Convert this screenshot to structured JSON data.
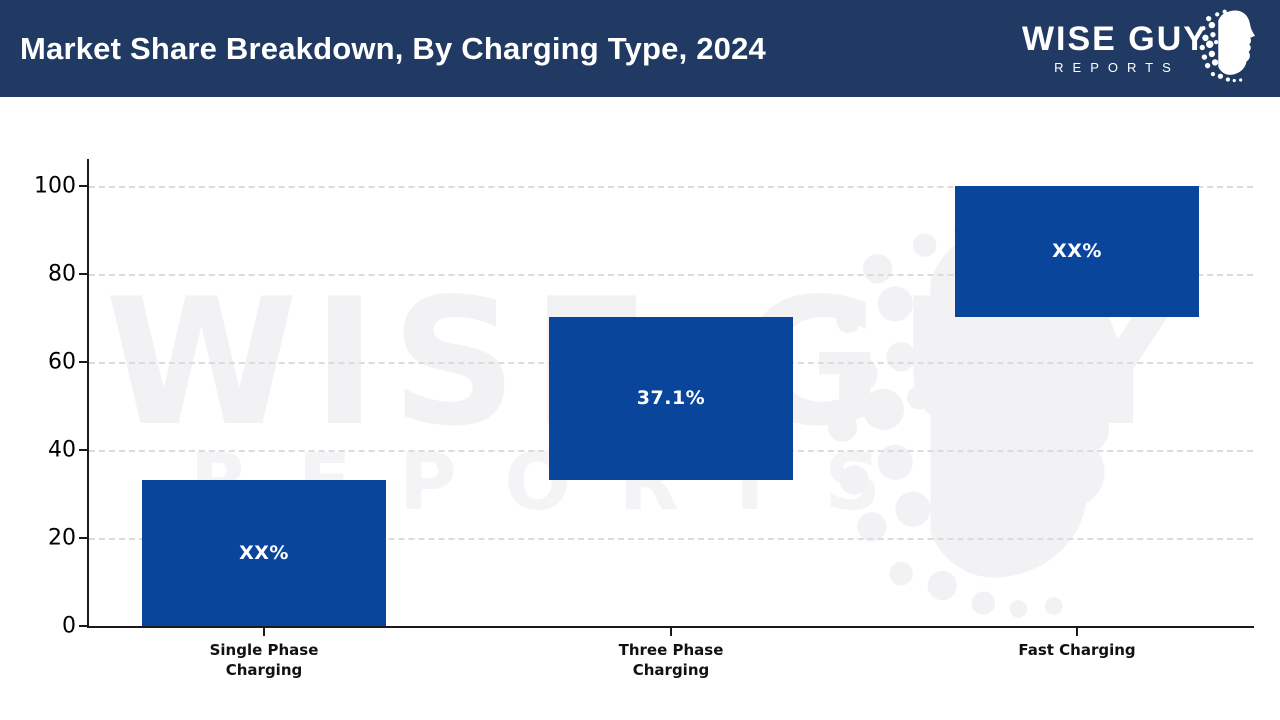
{
  "header": {
    "title": "Market Share Breakdown, By Charging Type, 2024",
    "bg_color": "#203A63",
    "logo": {
      "line1": "WISE GUY",
      "line2": "REPORTS"
    }
  },
  "watermark": {
    "line1": "WISE GUY",
    "line2": "REPORTS"
  },
  "chart_data": {
    "type": "bar",
    "subtype": "waterfall",
    "title": "Market Share Breakdown, By Charging Type, 2024",
    "xlabel": "",
    "ylabel": "",
    "categories": [
      [
        "Single Phase",
        "Charging"
      ],
      [
        "Three Phase",
        "Charging"
      ],
      [
        "Fast Charging"
      ]
    ],
    "bars": [
      {
        "label": "XX%",
        "start": 0,
        "end": 33.2,
        "value_shown": "XX%"
      },
      {
        "label": "37.1%",
        "start": 33.2,
        "end": 70.3,
        "value_shown": "37.1%"
      },
      {
        "label": "XX%",
        "start": 70.3,
        "end": 100,
        "value_shown": "XX%"
      }
    ],
    "yticks": [
      0,
      20,
      40,
      60,
      80,
      100
    ],
    "ylim": [
      0,
      106
    ],
    "bar_color": "#0A459C",
    "grid": "horizontal-dashed",
    "grid_color": "#DCDCDC",
    "legend": "none"
  }
}
